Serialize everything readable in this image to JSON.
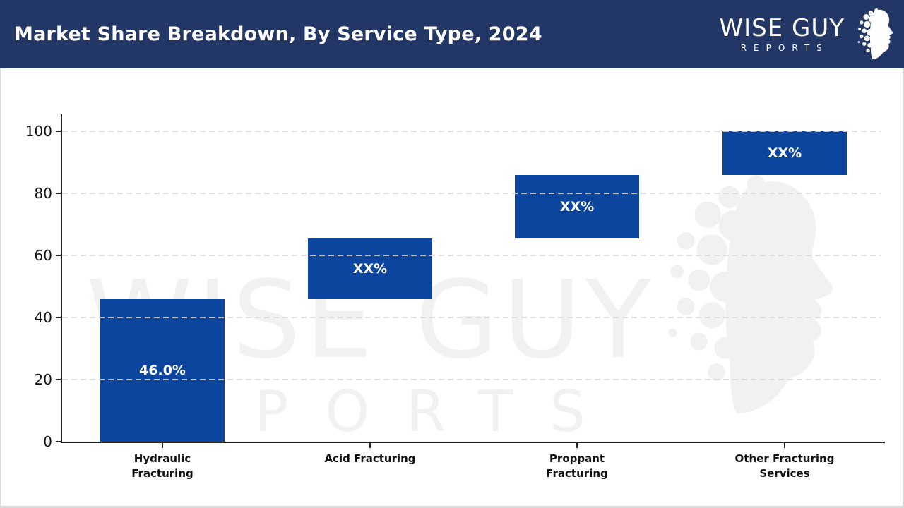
{
  "header": {
    "title": "Market Share Breakdown, By Service Type, 2024",
    "logo": {
      "line1": "WISE GUY",
      "line2": "REPORTS"
    }
  },
  "watermark": {
    "line1": "WISE GUY",
    "line2": "REPORTS"
  },
  "colors": {
    "header_bg": "#223765",
    "bar": "#0b459e",
    "axis": "#262626",
    "gridline": "#dcdcdc",
    "watermark": "#f1f1f1",
    "bar_label_text": "#ffffff"
  },
  "chart_data": {
    "type": "bar",
    "subtype": "waterfall",
    "title": "Market Share Breakdown, By Service Type, 2024",
    "categories": [
      "Hydraulic\nFracturing",
      "Acid Fracturing",
      "Proppant\nFracturing",
      "Other Fracturing\nServices"
    ],
    "segments": [
      {
        "category": "Hydraulic Fracturing",
        "start": 0,
        "end": 46.0,
        "value": 46.0,
        "bar_label": "46.0%"
      },
      {
        "category": "Acid Fracturing",
        "start": 46.0,
        "end": 65.5,
        "value": 19.5,
        "bar_label": "XX%"
      },
      {
        "category": "Proppant Fracturing",
        "start": 65.5,
        "end": 85.8,
        "value": 20.3,
        "bar_label": "XX%"
      },
      {
        "category": "Other Fracturing Services",
        "start": 85.8,
        "end": 100.0,
        "value": 14.2,
        "bar_label": "XX%"
      }
    ],
    "xlabel": "",
    "ylabel": "",
    "ylim": [
      0,
      100
    ],
    "yticks": [
      0,
      20,
      40,
      60,
      80,
      100
    ],
    "grid": "horizontal-dashed-over-bars",
    "legend": "none",
    "bar_color": "#0b459e"
  }
}
